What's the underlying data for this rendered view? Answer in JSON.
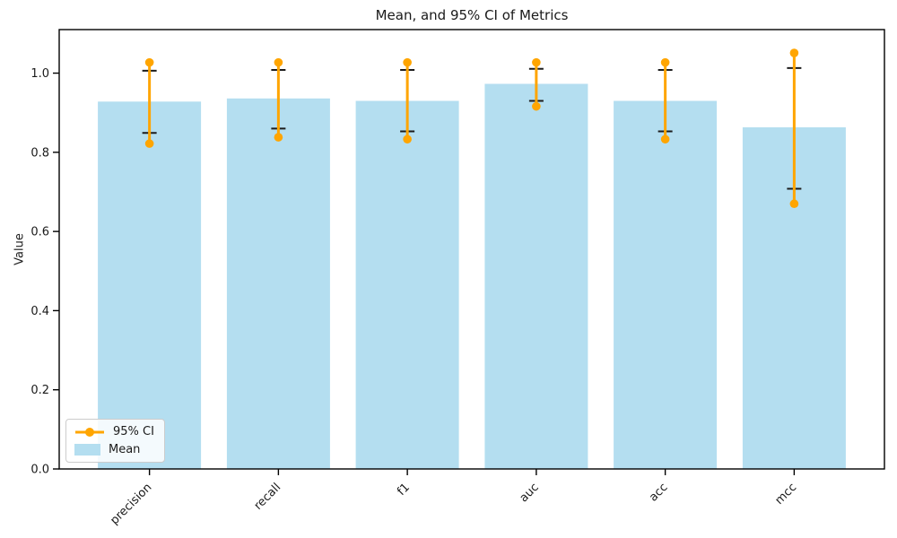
{
  "chart_data": {
    "type": "bar",
    "title": "Mean, and 95% CI of Metrics",
    "xlabel": "",
    "ylabel": "Value",
    "categories": [
      "precision",
      "recall",
      "f1",
      "auc",
      "acc",
      "mcc"
    ],
    "series": [
      {
        "name": "Mean",
        "values": [
          0.928,
          0.936,
          0.93,
          0.973,
          0.93,
          0.863
        ]
      }
    ],
    "ci95": {
      "name": "95% CI",
      "low": [
        0.822,
        0.838,
        0.833,
        0.916,
        0.833,
        0.67
      ],
      "high": [
        1.027,
        1.027,
        1.027,
        1.027,
        1.027,
        1.051
      ]
    },
    "whiskers": {
      "low": [
        0.849,
        0.86,
        0.853,
        0.93,
        0.853,
        0.708
      ],
      "high": [
        1.006,
        1.008,
        1.008,
        1.011,
        1.008,
        1.013
      ]
    },
    "y_ticks": [
      0.0,
      0.2,
      0.4,
      0.6,
      0.8,
      1.0
    ],
    "y_tick_labels": [
      "0.0",
      "0.2",
      "0.4",
      "0.6",
      "0.8",
      "1.0"
    ],
    "ylim": [
      0,
      1.11
    ],
    "grid": false,
    "legend": {
      "position": "lower-left",
      "items": [
        {
          "label": "95% CI",
          "marker": "line-dot",
          "color": "#ffa500"
        },
        {
          "label": "Mean",
          "marker": "patch",
          "color": "#b4def0"
        }
      ]
    },
    "colors": {
      "bar": "#b4def0",
      "ci": "#ffa500",
      "whisker": "#1c1c1c",
      "axis": "#000000",
      "text": "#1a1a1a"
    }
  }
}
